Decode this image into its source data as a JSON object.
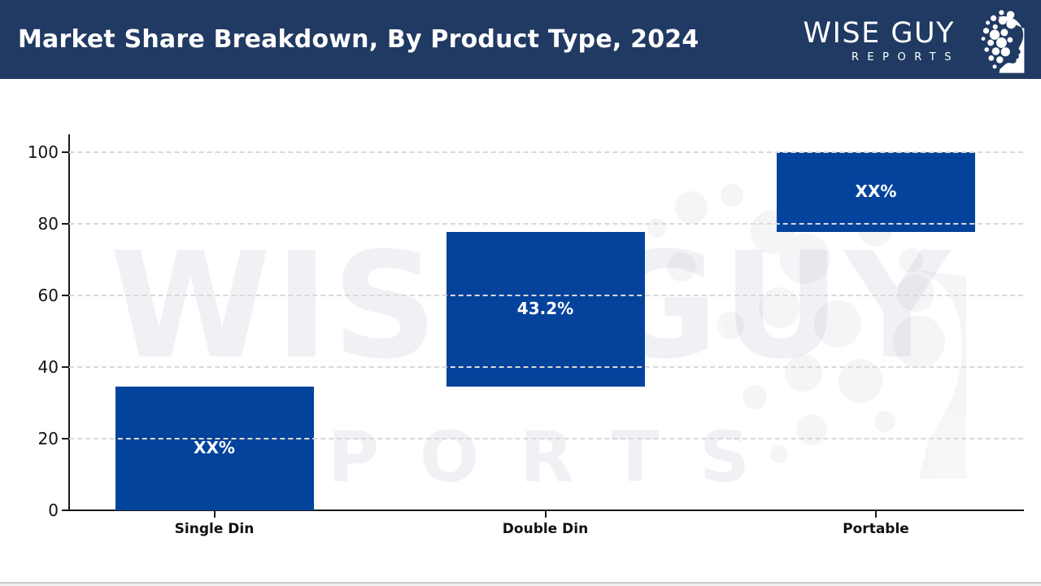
{
  "header": {
    "title": "Market Share Breakdown, By Product Type, 2024",
    "background_color": "#213a63",
    "logo": {
      "wordmark": "WISE GUY",
      "subtitle": "REPORTS"
    }
  },
  "watermark": {
    "wordmark": "WISE GUY",
    "subtitle": "REPORTS"
  },
  "chart_data": {
    "type": "bar",
    "variant": "floating-cumulative-percentage",
    "title": "Market Share Breakdown, By Product Type, 2024",
    "categories": [
      "Single Din",
      "Double Din",
      "Portable"
    ],
    "segments": [
      {
        "category": "Single Din",
        "start": 0,
        "end": 34.5,
        "value_label": "XX%"
      },
      {
        "category": "Double Din",
        "start": 34.5,
        "end": 77.7,
        "value_label": "43.2%"
      },
      {
        "category": "Portable",
        "start": 77.7,
        "end": 100,
        "value_label": "XX%"
      }
    ],
    "known_values": {
      "Double Din": 43.2
    },
    "masked_values_label": "XX%",
    "xlabel": "",
    "ylabel": "",
    "ylim": [
      0,
      105
    ],
    "yticks": [
      0,
      20,
      40,
      60,
      80,
      100
    ],
    "grid": {
      "axis": "y",
      "style": "dashed",
      "color": "#d9d9d9",
      "drawn_over_bars": true
    },
    "bar_color": "#04439c",
    "bar_label_color": "#ffffff",
    "axis_text_color": "#111111",
    "legend": null
  }
}
